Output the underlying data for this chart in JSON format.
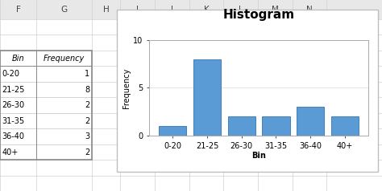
{
  "categories": [
    "0-20",
    "21-25",
    "26-30",
    "31-35",
    "36-40",
    "40+"
  ],
  "values": [
    1,
    8,
    2,
    2,
    3,
    2
  ],
  "bar_color": "#5B9BD5",
  "bar_edge_color": "#2E75B6",
  "title": "Histogram",
  "xlabel": "Bin",
  "ylabel": "Frequency",
  "ylim": [
    0,
    10
  ],
  "yticks": [
    0,
    5,
    10
  ],
  "col_headers": [
    "F",
    "G",
    "H",
    "I",
    "J",
    "K",
    "L",
    "M",
    "N"
  ],
  "table_headers": [
    "Bin",
    "Frequency"
  ],
  "table_bins": [
    "0-20",
    "21-25",
    "26-30",
    "31-35",
    "36-40",
    "40+"
  ],
  "table_freqs": [
    1,
    8,
    2,
    2,
    3,
    2
  ],
  "excel_bg": "#f2f2f2",
  "grid_color": "#d0d0d0",
  "col_header_bg": "#e8e8e8",
  "col_header_text": "#444444",
  "cell_bg": "#ffffff",
  "chart_bg": "#ffffff",
  "chart_border": "#bfbfbf",
  "title_fontsize": 11,
  "axis_label_fontsize": 7,
  "tick_fontsize": 7,
  "col_widths": [
    0.095,
    0.145,
    0.075,
    0.09,
    0.09,
    0.09,
    0.09,
    0.09,
    0.09
  ]
}
